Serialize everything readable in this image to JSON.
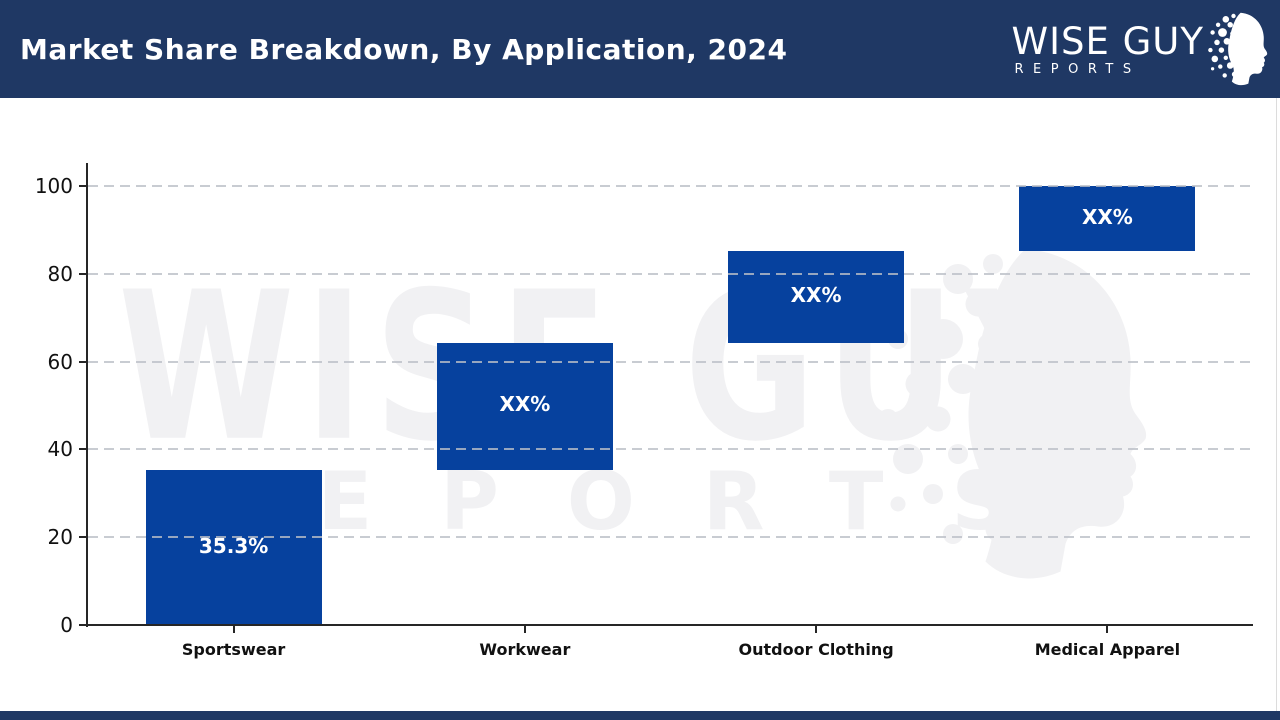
{
  "header": {
    "title": "Market Share Breakdown, By Application, 2024",
    "logo_line1": "WISE GUY",
    "logo_line2": "REPORTS"
  },
  "watermark": {
    "line1": "WISE GUY",
    "line2": "REPORTS"
  },
  "colors": {
    "header_bg": "#1f3864",
    "bar": "#06419e",
    "bar_label": "#ffffff",
    "axis": "#262626",
    "tick_label": "#111111",
    "grid": "rgba(187,191,199,0.8)",
    "watermark": "#f1f1f3"
  },
  "chart_data": {
    "type": "bar",
    "variant": "floating-segment-breakdown",
    "title": "Market Share Breakdown, By Application, 2024",
    "categories": [
      "Sportswear",
      "Workwear",
      "Outdoor Clothing",
      "Medical Apparel"
    ],
    "segments": [
      {
        "category": "Sportswear",
        "start": 0,
        "end": 35.3,
        "label": "35.3%"
      },
      {
        "category": "Workwear",
        "start": 35.3,
        "end": 64.3,
        "label": "XX%"
      },
      {
        "category": "Outdoor Clothing",
        "start": 64.3,
        "end": 85.2,
        "label": "XX%"
      },
      {
        "category": "Medical Apparel",
        "start": 85.2,
        "end": 100,
        "label": "XX%"
      }
    ],
    "yticks": [
      0,
      20,
      40,
      60,
      80,
      100
    ],
    "ylim": [
      0,
      105
    ],
    "xlabel": "",
    "ylabel": "",
    "grid": "dashed-horizontal-over-bars",
    "legend": false
  }
}
